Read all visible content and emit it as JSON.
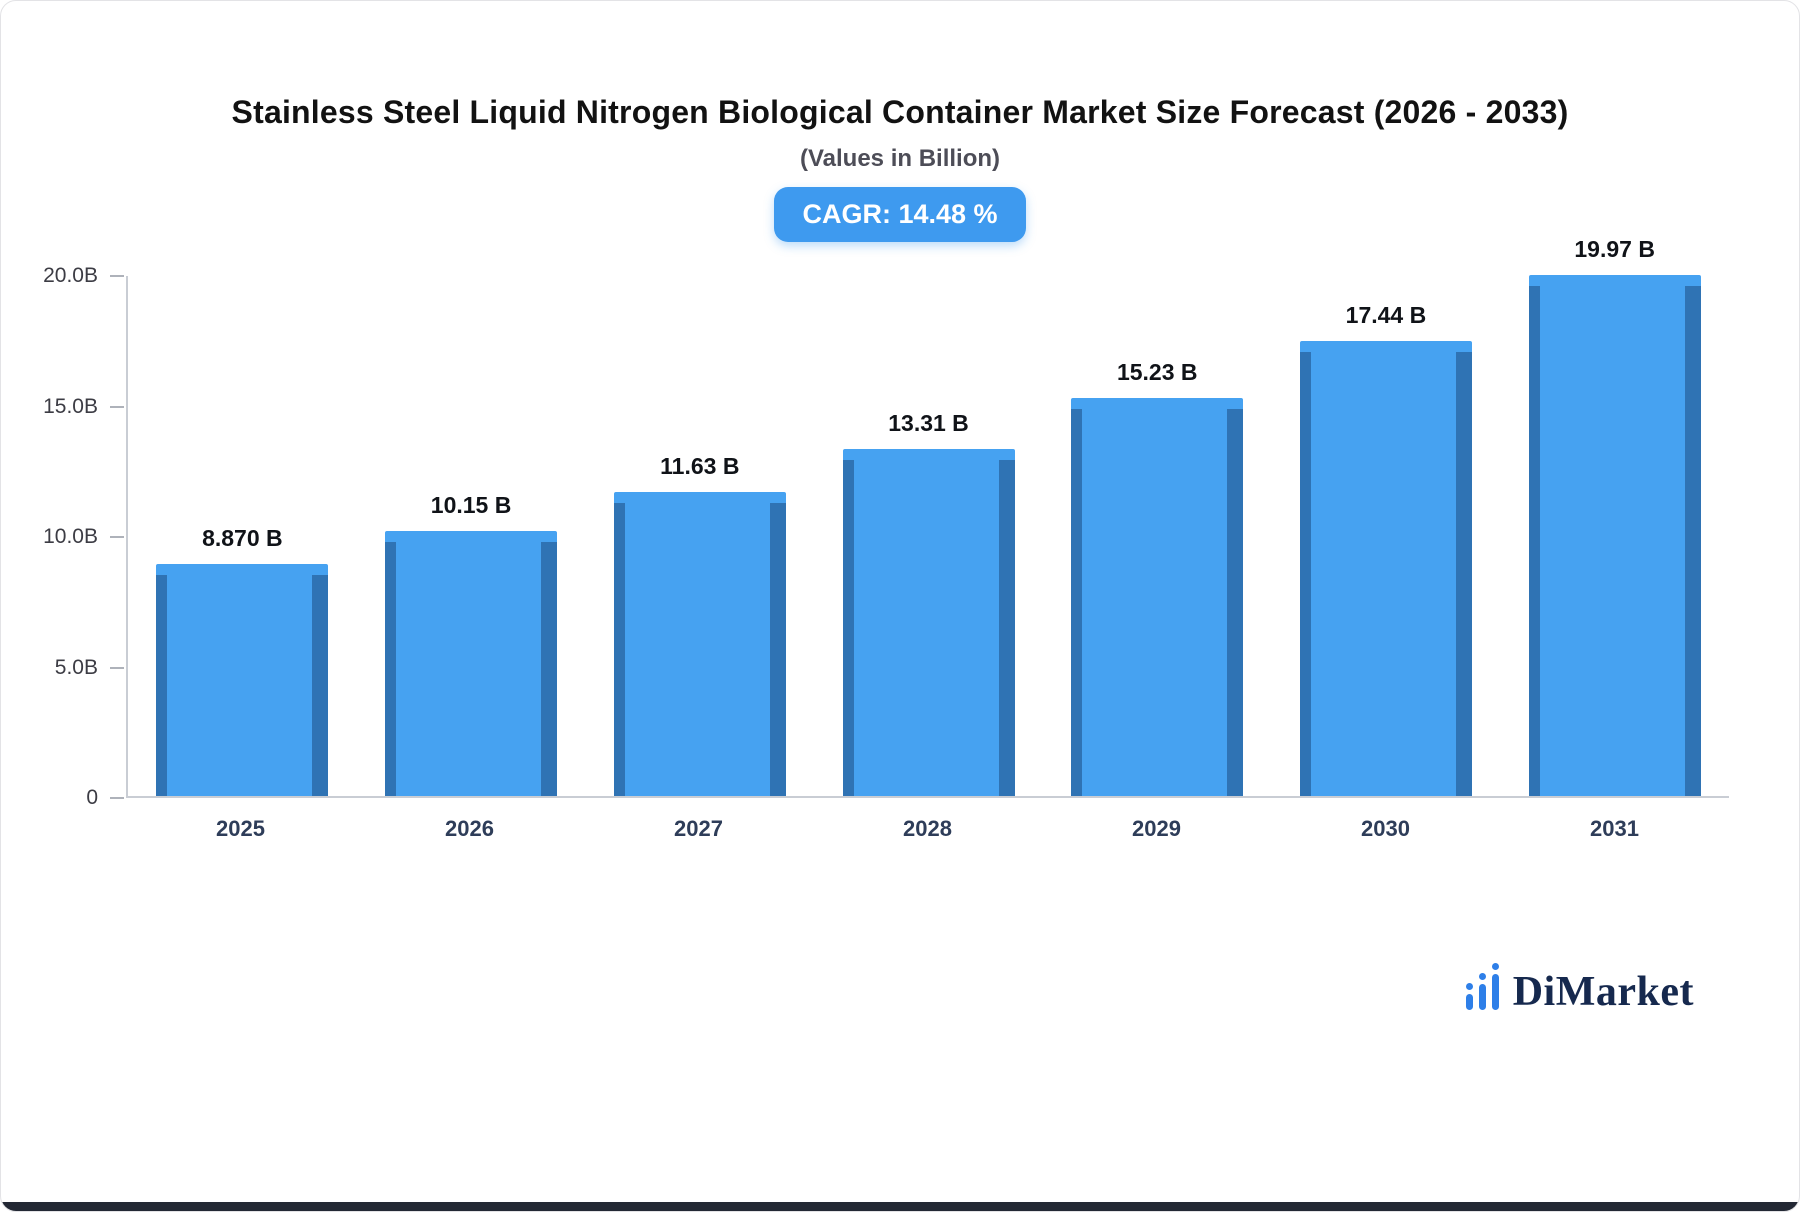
{
  "header": {
    "title": "Stainless Steel Liquid Nitrogen Biological Container Market Size Forecast (2026 - 2033)",
    "subtitle": "(Values in Billion)",
    "cagr_label": "CAGR: 14.48 %"
  },
  "logo": {
    "text": "DiMarket"
  },
  "colors": {
    "bar": "#46a2f1",
    "bar_edge": "#2f73b4",
    "badge": "#3e9aef",
    "logo_blue": "#2e7fe8"
  },
  "chart_data": {
    "type": "bar",
    "title": "Stainless Steel Liquid Nitrogen Biological Container Market Size Forecast (2026 - 2033)",
    "subtitle": "(Values in Billion)",
    "cagr_percent": 14.48,
    "categories": [
      "2025",
      "2026",
      "2027",
      "2028",
      "2029",
      "2030",
      "2031"
    ],
    "values": [
      8.87,
      10.15,
      11.63,
      13.31,
      15.23,
      17.44,
      19.97
    ],
    "value_labels": [
      "8.870 B",
      "10.15 B",
      "11.63 B",
      "13.31 B",
      "15.23 B",
      "17.44 B",
      "19.97 B"
    ],
    "xlabel": "",
    "ylabel": "",
    "ylim": [
      0,
      20
    ],
    "yticks": [
      {
        "value": 0,
        "label": "0"
      },
      {
        "value": 5,
        "label": "5.0B"
      },
      {
        "value": 10,
        "label": "10.0B"
      },
      {
        "value": 15,
        "label": "15.0B"
      },
      {
        "value": 20,
        "label": "20.0B"
      }
    ],
    "grid": false,
    "legend": false
  }
}
